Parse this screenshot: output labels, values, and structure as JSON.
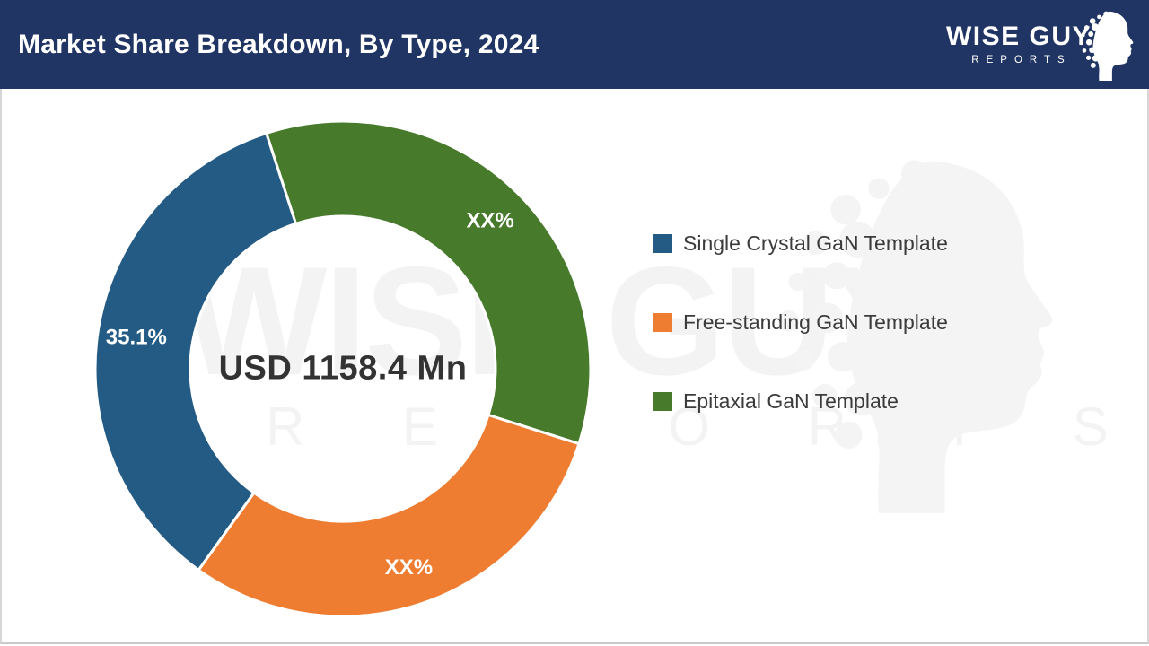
{
  "header": {
    "title": "Market Share Breakdown, By Type, 2024",
    "logo_line1": "WISE GUY",
    "logo_line2": "REPORTS"
  },
  "watermark": {
    "line1": "WISE GUY",
    "line2": "R E P O R T S"
  },
  "colors": {
    "header_bg": "#213564",
    "blue": "#235B84",
    "orange": "#EE7D32",
    "green": "#487A2B",
    "border_gray": "#C9C9C9",
    "watermark_gray": "#F3F3F3",
    "center_text": "#333333",
    "legend_text": "#3B3B3B",
    "slice_label_text": "#FFFFFF"
  },
  "chart_data": {
    "type": "pie",
    "variant": "donut",
    "title": "Market Share Breakdown, By Type, 2024",
    "center_label": "USD 1158.4 Mn",
    "legend_position": "right",
    "inner_to_outer_ratio": 0.615,
    "start_angle_deg_from_top": -18,
    "slices": [
      {
        "label": "Epitaxial GaN Template",
        "display_value": "XX%",
        "percent_est": 34.9,
        "color": "#487A2B"
      },
      {
        "label": "Free-standing GaN Template",
        "display_value": "XX%",
        "percent_est": 30.0,
        "color": "#EE7D32"
      },
      {
        "label": "Single Crystal GaN Template",
        "display_value": "35.1%",
        "percent_est": 35.1,
        "color": "#235B84"
      }
    ],
    "legend": [
      {
        "label": "Single Crystal GaN Template",
        "color": "#235B84"
      },
      {
        "label": "Free-standing GaN Template",
        "color": "#EE7D32"
      },
      {
        "label": "Epitaxial GaN Template",
        "color": "#487A2B"
      }
    ]
  }
}
